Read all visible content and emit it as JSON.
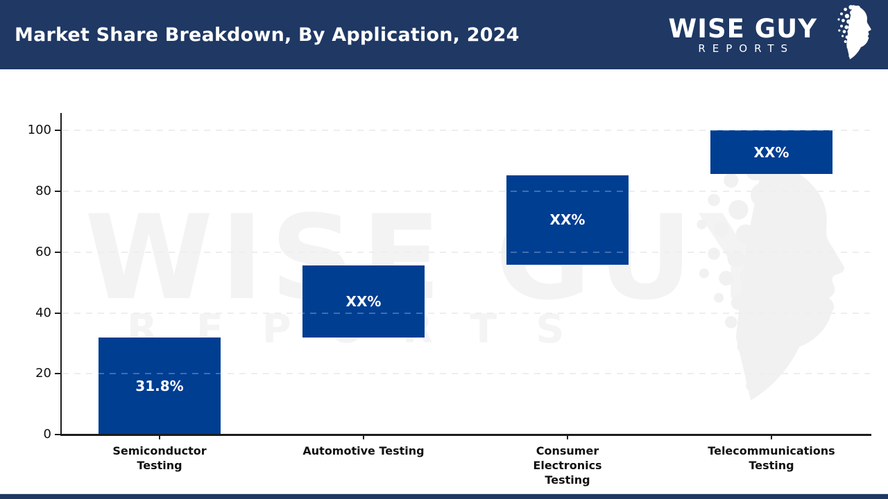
{
  "header": {
    "title": "Market Share Breakdown, By Application, 2024",
    "background": "#1f3864",
    "logo": {
      "name": "WISE GUY",
      "sub": "REPORTS"
    }
  },
  "watermark": {
    "name": "WISE GUY",
    "sub": "REPORTS"
  },
  "chart_data": {
    "type": "bar",
    "variant": "waterfall",
    "title": "Market Share Breakdown, By Application, 2024",
    "categories": [
      "Semiconductor\nTesting",
      "Automotive Testing",
      "Consumer\nElectronics\nTesting",
      "Telecommunications\nTesting"
    ],
    "segments": [
      {
        "category": "Semiconductor Testing",
        "start": 0,
        "end": 31.8,
        "label": "31.8%"
      },
      {
        "category": "Automotive Testing",
        "start": 31.8,
        "end": 55.6,
        "label": "XX%"
      },
      {
        "category": "Consumer Electronics Testing",
        "start": 55.8,
        "end": 85.3,
        "label": "XX%"
      },
      {
        "category": "Telecommunications Testing",
        "start": 85.7,
        "end": 100,
        "label": "XX%"
      }
    ],
    "xlabel": "",
    "ylabel": "",
    "ylim": [
      0,
      100
    ],
    "yticks": [
      0,
      20,
      40,
      60,
      80,
      100
    ],
    "grid": "horizontal-dashed",
    "legend": "none",
    "bar_color": "#003e92",
    "bar_label_color": "#ffffff",
    "gridline_color": "#e8e8e8",
    "axis_color": "#1c1c1c"
  },
  "colors": {
    "header_bg": "#1f3864",
    "footer_strip": "#1f3864",
    "watermark": "#f3f3f3",
    "bar": "#003e92"
  }
}
